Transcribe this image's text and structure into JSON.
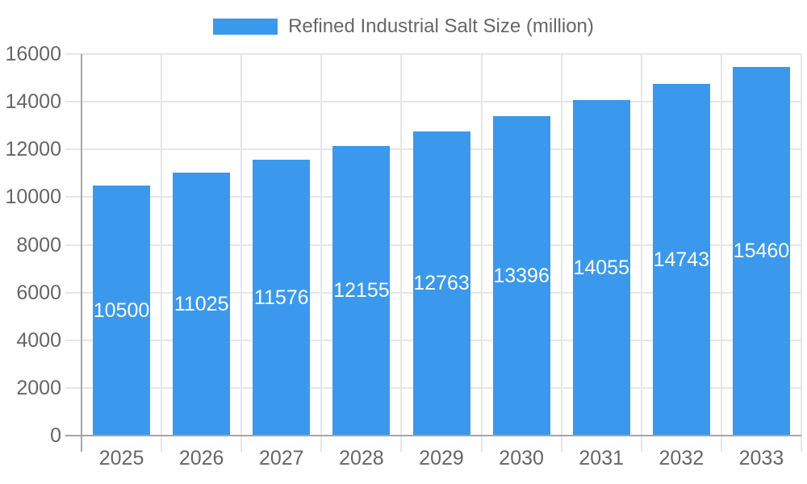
{
  "legend": {
    "label": "Refined Industrial Salt Size (million)",
    "position": "top-center"
  },
  "colors": {
    "bar": "#3A99EC",
    "grid": "#E6E6E6",
    "axis": "#A6A6A6",
    "tick_text": "#666666",
    "value_label_text": "#FFFFFF",
    "background": "#FFFFFF"
  },
  "chart_data": {
    "type": "bar",
    "title": "Refined Industrial Salt Size (million)",
    "categories": [
      "2025",
      "2026",
      "2027",
      "2028",
      "2029",
      "2030",
      "2031",
      "2032",
      "2033"
    ],
    "series": [
      {
        "name": "Refined Industrial Salt Size (million)",
        "color": "#3A99EC",
        "values": [
          10500,
          11025,
          11576,
          12155,
          12763,
          13396,
          14055,
          14743,
          15460
        ]
      }
    ],
    "xlabel": "",
    "ylabel": "",
    "ylim": [
      0,
      16000
    ],
    "yticks": [
      0,
      2000,
      4000,
      6000,
      8000,
      10000,
      12000,
      14000,
      16000
    ],
    "grid": true,
    "vertical_gridlines": true,
    "legend_position": "top-center",
    "value_labels": "inside-center"
  }
}
